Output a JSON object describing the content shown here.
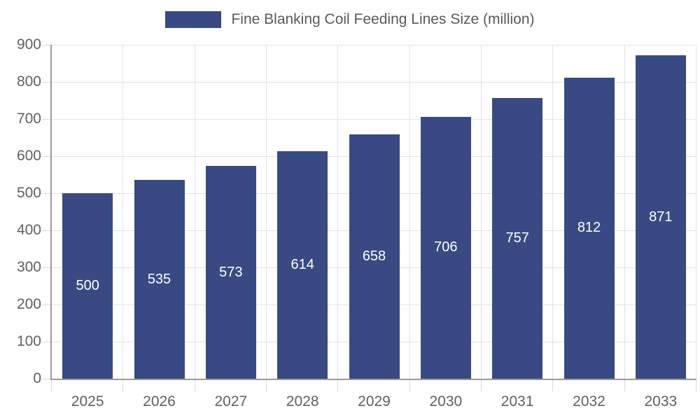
{
  "chart_data": {
    "type": "bar",
    "title": "Fine Blanking Coil Feeding Lines Size (million)",
    "categories": [
      "2025",
      "2026",
      "2027",
      "2028",
      "2029",
      "2030",
      "2031",
      "2032",
      "2033"
    ],
    "values": [
      500,
      535,
      573,
      614,
      658,
      706,
      757,
      812,
      871
    ],
    "xlabel": "",
    "ylabel": "",
    "ylim": [
      0,
      900
    ],
    "yticks": [
      0,
      100,
      200,
      300,
      400,
      500,
      600,
      700,
      800,
      900
    ],
    "grid": true,
    "legend_position": "top-center",
    "bar_label_position": "inside-center",
    "colors": {
      "bar": "#384a81",
      "bar_label": "#ffffff",
      "axis_text": "#606060",
      "legend_text": "#595959",
      "grid_line": "#e2e2e2",
      "tick_line": "#d9d9d9",
      "axis_line": "#9a9a9a",
      "background": "#ffffff"
    }
  }
}
